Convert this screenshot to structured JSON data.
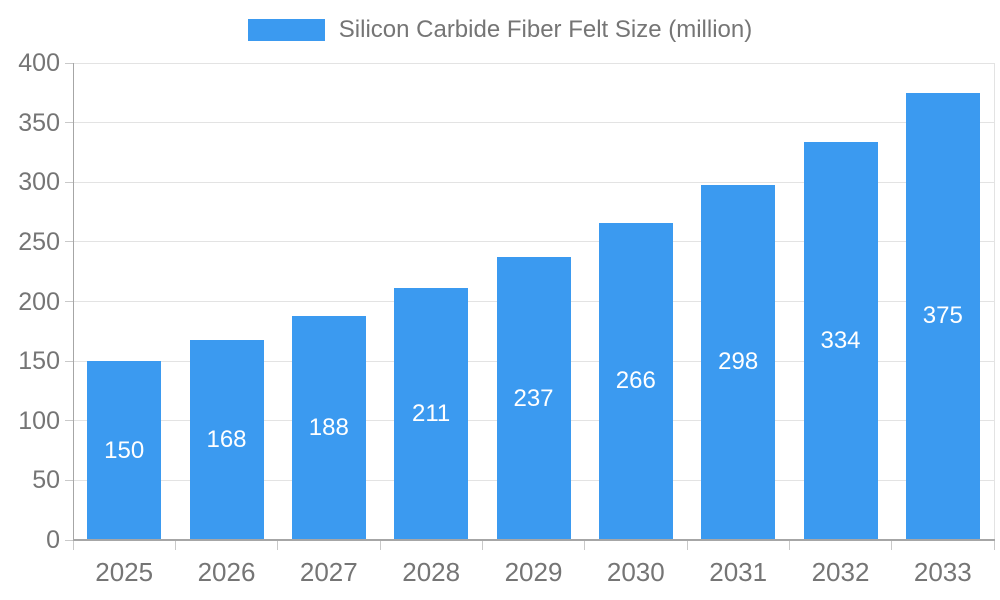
{
  "chart_data": {
    "type": "bar",
    "title": "Silicon Carbide Fiber Felt Size (million)",
    "legend": {
      "position": "top",
      "label": "Silicon Carbide Fiber Felt Size (million)"
    },
    "categories": [
      "2025",
      "2026",
      "2027",
      "2028",
      "2029",
      "2030",
      "2031",
      "2032",
      "2033"
    ],
    "series": [
      {
        "name": "Silicon Carbide Fiber Felt Size (million)",
        "values": [
          150,
          168,
          188,
          211,
          237,
          266,
          298,
          334,
          375
        ]
      }
    ],
    "data_labels": [
      "150",
      "168",
      "188",
      "211",
      "237",
      "266",
      "298",
      "334",
      "375"
    ],
    "xlabel": "",
    "ylabel": "",
    "ylim": [
      0,
      400
    ],
    "ytick_step": 50,
    "yticks": [
      0,
      50,
      100,
      150,
      200,
      250,
      300,
      350,
      400
    ],
    "yticklabels": [
      "0",
      "50",
      "100",
      "150",
      "200",
      "250",
      "300",
      "350",
      "400"
    ],
    "grid": true,
    "colors": {
      "bar": "#3b9af0",
      "bar_value_label": "#ffffff",
      "axis_text": "#757575",
      "legend_text": "#757575",
      "axis_line": "#a6a6a6",
      "tick": "#c9c9c9",
      "gridline": "#e3e3e3",
      "plot_border": "#e3e3e3",
      "background": "#ffffff"
    }
  }
}
